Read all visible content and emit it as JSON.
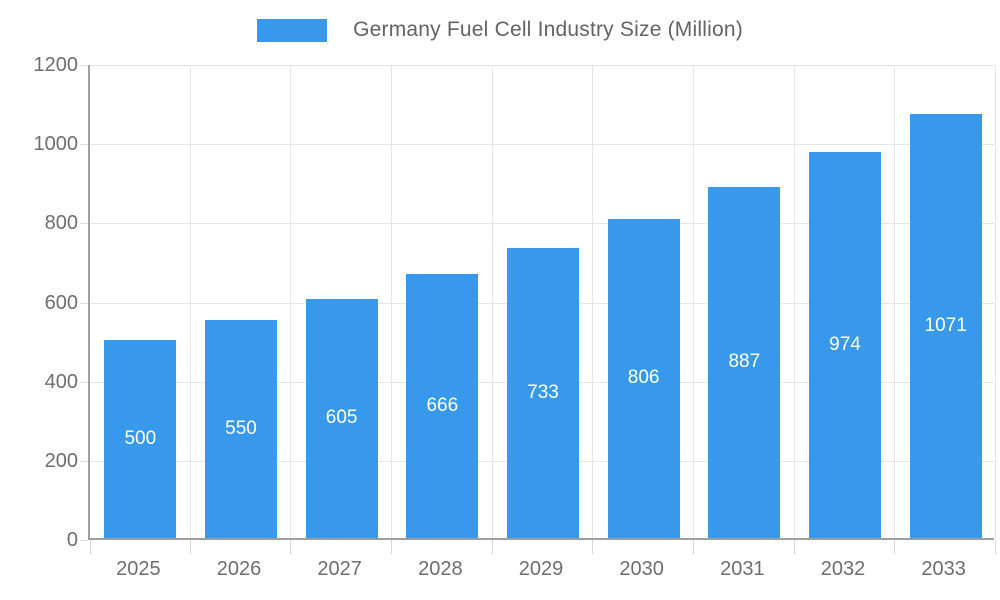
{
  "legend": {
    "label": "Germany Fuel Cell Industry Size (Million)"
  },
  "colors": {
    "bar": "#3899EC",
    "grid": "#E6E6E6",
    "axis_line": "#9E9E9E",
    "axis_text": "#6E6E6E",
    "legend_text": "#636363",
    "value_label": "#FFFFFF",
    "background": "#FFFFFF"
  },
  "chart_data": {
    "type": "bar",
    "title": "Germany Fuel Cell Industry Size (Million)",
    "categories": [
      "2025",
      "2026",
      "2027",
      "2028",
      "2029",
      "2030",
      "2031",
      "2032",
      "2033"
    ],
    "values": [
      500,
      550,
      605,
      666,
      733,
      806,
      887,
      974,
      1071
    ],
    "value_labels": [
      "500",
      "550",
      "605",
      "666",
      "733",
      "806",
      "887",
      "974",
      "1071"
    ],
    "xlabel": "",
    "ylabel": "",
    "ylim": [
      0,
      1200
    ],
    "yticks": [
      0,
      200,
      400,
      600,
      800,
      1000,
      1200
    ],
    "grid": true,
    "legend_position": "top-center",
    "bar_labels_inside": true
  }
}
